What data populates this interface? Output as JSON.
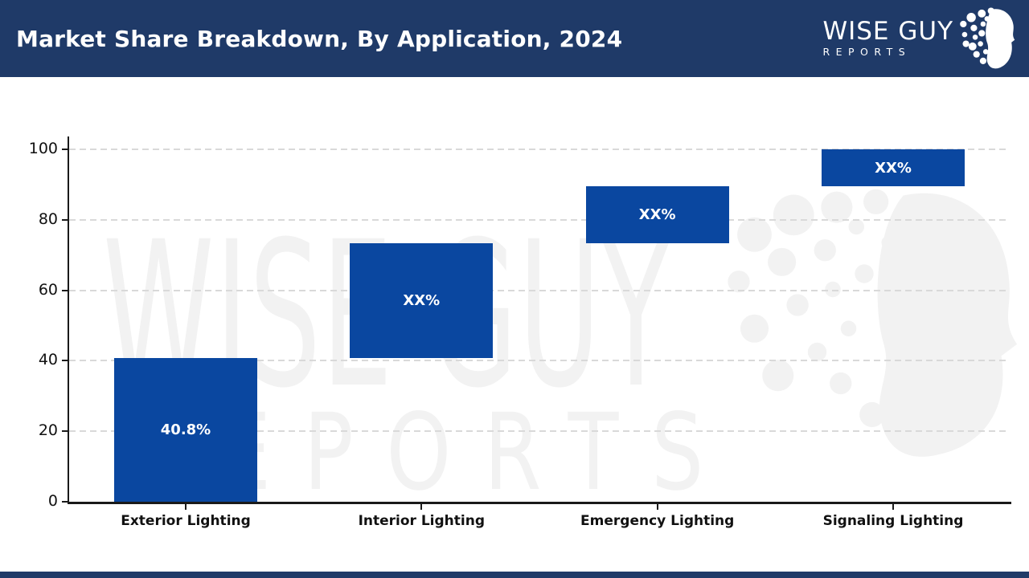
{
  "header": {
    "title": "Market Share Breakdown, By Application, 2024",
    "bg_color": "#1f3a68",
    "logo_line1": "WISE GUY",
    "logo_line2": "REPORTS"
  },
  "watermark": {
    "line1": "WISE GUY",
    "line2": "REPORTS",
    "color": "#f2f2f2"
  },
  "chart_data": {
    "type": "bar",
    "variant": "waterfall",
    "title": "Market Share Breakdown, By Application, 2024",
    "categories": [
      "Exterior Lighting",
      "Interior Lighting",
      "Emergency Lighting",
      "Signaling Lighting"
    ],
    "segments": [
      {
        "category": "Exterior Lighting",
        "start": 0,
        "end": 40.8,
        "label": "40.8%"
      },
      {
        "category": "Interior Lighting",
        "start": 40.8,
        "end": 73.3,
        "label": "XX%"
      },
      {
        "category": "Emergency Lighting",
        "start": 73.3,
        "end": 89.5,
        "label": "XX%"
      },
      {
        "category": "Signaling Lighting",
        "start": 89.5,
        "end": 100,
        "label": "XX%"
      }
    ],
    "y_ticks": [
      0,
      20,
      40,
      60,
      80,
      100
    ],
    "ylim": [
      0,
      100
    ],
    "xlabel": "",
    "ylabel": "",
    "grid": "horizontal-dashed",
    "legend": "none",
    "colors": {
      "bar": "#0a47a0",
      "bar_label": "#ffffff",
      "axis": "#1a1a1a",
      "grid": "#d9d9d9",
      "watermark": "#f2f2f2",
      "banner": "#1f3a68"
    }
  }
}
